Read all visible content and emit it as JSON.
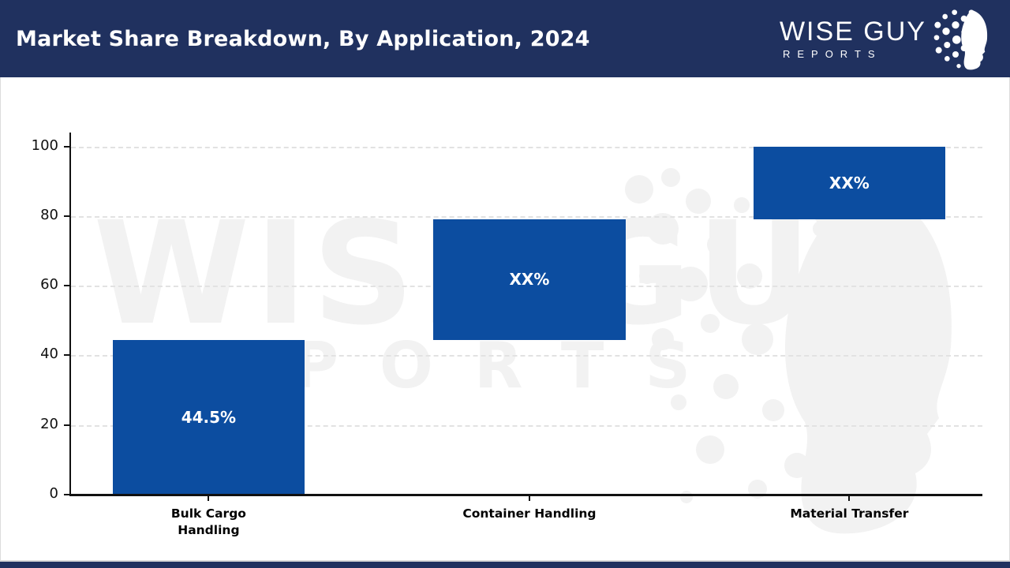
{
  "header": {
    "title": "Market Share Breakdown, By Application, 2024",
    "logo": {
      "wordmark": "WISE GUY",
      "subtext": "REPORTS"
    }
  },
  "watermark": {
    "line1": "WISE GUY",
    "line2": "REPORTS"
  },
  "colors": {
    "header_bg": "#20315f",
    "bar": "#0c4da0",
    "bar_label": "#ffffff",
    "watermark": "#f2f2f2",
    "gridline": "#e2e2e2",
    "axis": "#111111",
    "footer_bg": "#20315f"
  },
  "chart_data": {
    "type": "bar",
    "subtype": "waterfall",
    "title": "Market Share Breakdown, By Application, 2024",
    "xlabel": "",
    "ylabel": "",
    "ylim": [
      0,
      104
    ],
    "yticks": [
      0,
      20,
      40,
      60,
      80,
      100
    ],
    "grid": "horizontal-dashed",
    "legend": "none",
    "categories": [
      "Bulk Cargo Handling",
      "Container Handling",
      "Material Transfer"
    ],
    "category_label_lines": [
      [
        "Bulk Cargo",
        "Handling"
      ],
      [
        "Container Handling"
      ],
      [
        "Material Transfer"
      ]
    ],
    "bars": [
      {
        "category": "Bulk Cargo Handling",
        "start": 0,
        "end": 44.5,
        "value": "44.5",
        "label": "44.5%"
      },
      {
        "category": "Container Handling",
        "start": 44.5,
        "end": 79,
        "value": "XX",
        "label": "XX%"
      },
      {
        "category": "Material Transfer",
        "start": 79,
        "end": 100,
        "value": "XX",
        "label": "XX%"
      }
    ]
  }
}
